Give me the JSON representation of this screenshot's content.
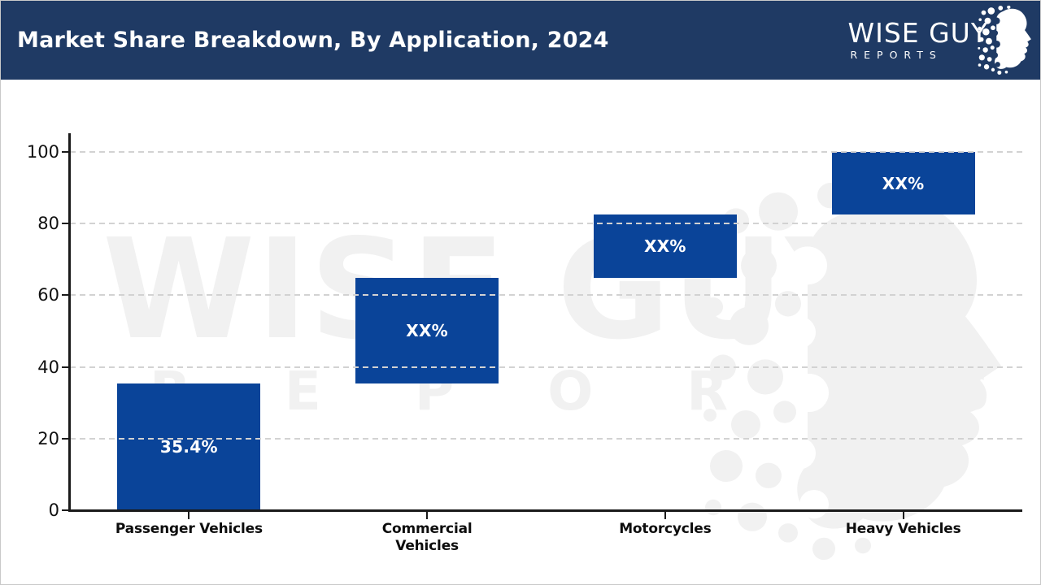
{
  "header": {
    "title": "Market Share Breakdown, By Application, 2024",
    "logo": {
      "line1": "WISE GUY",
      "line2": "REPORTS"
    }
  },
  "watermark": {
    "line1": "WISE GUY",
    "line2": "R E P O R T S"
  },
  "chart_data": {
    "type": "bar",
    "subtype": "floating-waterfall",
    "title": "Market Share Breakdown, By Application, 2024",
    "categories": [
      "Passenger Vehicles",
      "Commercial\nVehicles",
      "Motorcycles",
      "Heavy Vehicles"
    ],
    "segments": [
      {
        "category": "Passenger Vehicles",
        "start": 0,
        "end": 35.4,
        "label": "35.4%"
      },
      {
        "category": "Commercial Vehicles",
        "start": 35.4,
        "end": 64.9,
        "label": "XX%"
      },
      {
        "category": "Motorcycles",
        "start": 64.9,
        "end": 82.5,
        "label": "XX%"
      },
      {
        "category": "Heavy Vehicles",
        "start": 82.5,
        "end": 100,
        "label": "XX%"
      }
    ],
    "yticks": [
      0,
      20,
      40,
      60,
      80,
      100
    ],
    "ylim": [
      0,
      105
    ],
    "xlabel": "",
    "ylabel": "",
    "grid": "horizontal-dashed-over-bars",
    "legend": "none",
    "bar_width_frac": 0.6
  },
  "colors": {
    "header_bg": "#1f3a64",
    "bar": "#0a4499",
    "bar_label": "#ffffff",
    "grid": "#d2d2d2",
    "axis": "#1a1a1a",
    "tick_label": "#111111",
    "watermark": "#f1f1f1",
    "border": "#c9c9c9"
  }
}
